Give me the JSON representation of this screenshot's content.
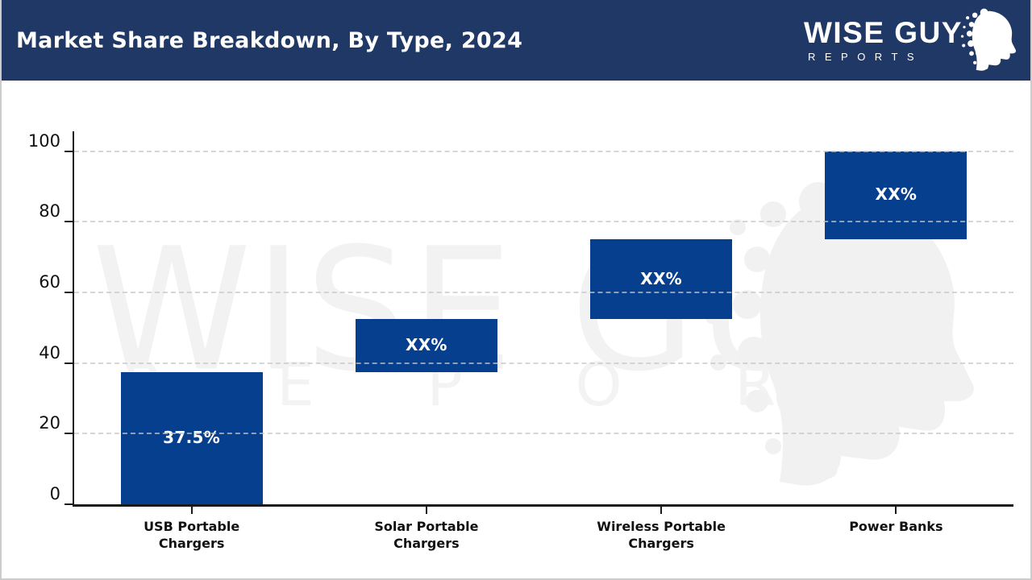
{
  "header": {
    "title": "Market Share Breakdown, By Type, 2024",
    "logo": {
      "line1": "WISE GUY",
      "line2": "REPORTS"
    }
  },
  "watermark": {
    "line1": "WISE GUY",
    "line2": "R E P O R T S"
  },
  "chart_data": {
    "type": "bar",
    "variant": "waterfall",
    "title": "Market Share Breakdown, By Type, 2024",
    "categories": [
      "USB Portable\nChargers",
      "Solar Portable\nChargers",
      "Wireless Portable\nChargers",
      "Power Banks"
    ],
    "bars": [
      {
        "category": "USB Portable Chargers",
        "start": 0,
        "end": 37.5,
        "label": "37.5%"
      },
      {
        "category": "Solar Portable Chargers",
        "start": 37.5,
        "end": 52.5,
        "label": "XX%"
      },
      {
        "category": "Wireless Portable Chargers",
        "start": 52.5,
        "end": 75,
        "label": "XX%"
      },
      {
        "category": "Power Banks",
        "start": 75,
        "end": 100,
        "label": "XX%"
      }
    ],
    "ylim": [
      0,
      100
    ],
    "yticks": [
      0,
      20,
      40,
      60,
      80,
      100
    ],
    "grid": "dashed-horizontal",
    "legend": "none",
    "bar_color": "#063f8e",
    "bar_label_color": "#ffffff"
  },
  "colors": {
    "header_bg": "#1f3865",
    "title_text": "#ffffff",
    "bar": "#063f8e",
    "axis": "#1a1a1a",
    "grid": "#c6c6c6",
    "page_border": "#cccccc",
    "watermark": "#f2f2f2"
  }
}
